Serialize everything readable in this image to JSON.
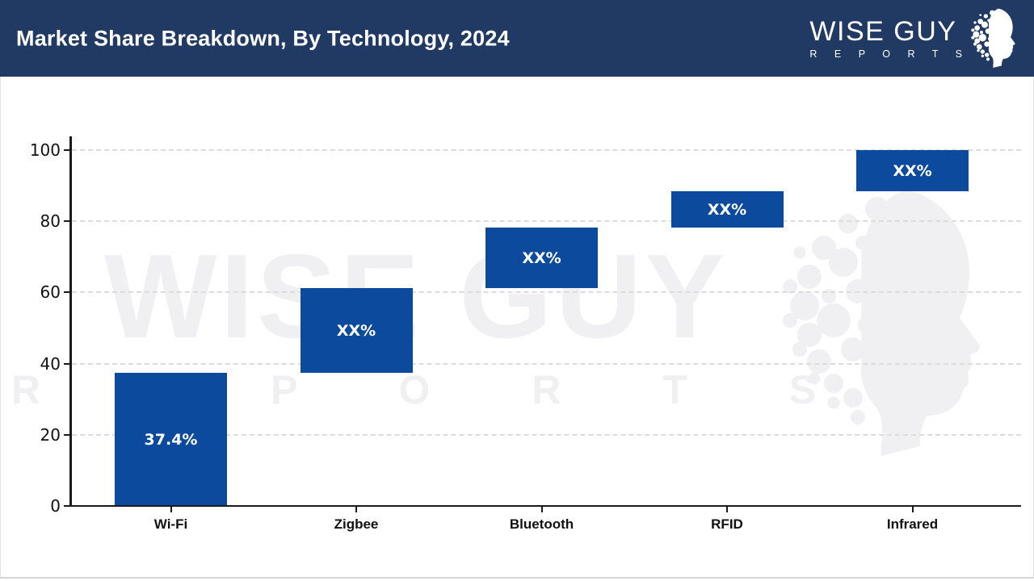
{
  "header": {
    "title": "Market Share Breakdown, By Technology, 2024",
    "background_color": "#203a64",
    "logo": {
      "line1": "WISE GUY",
      "line2": "R E P O R T S"
    }
  },
  "watermark": {
    "line1": "WISE GUY",
    "line2": "R E P O R T S"
  },
  "chart_data": {
    "type": "bar",
    "subtype": "waterfall",
    "title": "Market Share Breakdown, By Technology, 2024",
    "categories": [
      "Wi-Fi",
      "Zigbee",
      "Bluetooth",
      "RFID",
      "Infrared"
    ],
    "segments": [
      {
        "category": "Wi-Fi",
        "from": 0,
        "to": 37.4,
        "label": "37.4%"
      },
      {
        "category": "Zigbee",
        "from": 37.4,
        "to": 61.2,
        "label": "XX%"
      },
      {
        "category": "Bluetooth",
        "from": 61.2,
        "to": 78.2,
        "label": "XX%"
      },
      {
        "category": "RFID",
        "from": 78.2,
        "to": 88.4,
        "label": "XX%"
      },
      {
        "category": "Infrared",
        "from": 88.4,
        "to": 100,
        "label": "XX%"
      }
    ],
    "xlabel": "",
    "ylabel": "",
    "ylim": [
      0,
      100
    ],
    "yticks": [
      0,
      20,
      40,
      60,
      80,
      100
    ],
    "grid": "horizontal-dashed",
    "legend": "none",
    "bar_color": "#0c4a9e",
    "bar_label_color": "#ffffff",
    "axis_color": "#1a1a1a",
    "gridline_color": "#dcdcdc",
    "tick_label_color": "#111111"
  }
}
